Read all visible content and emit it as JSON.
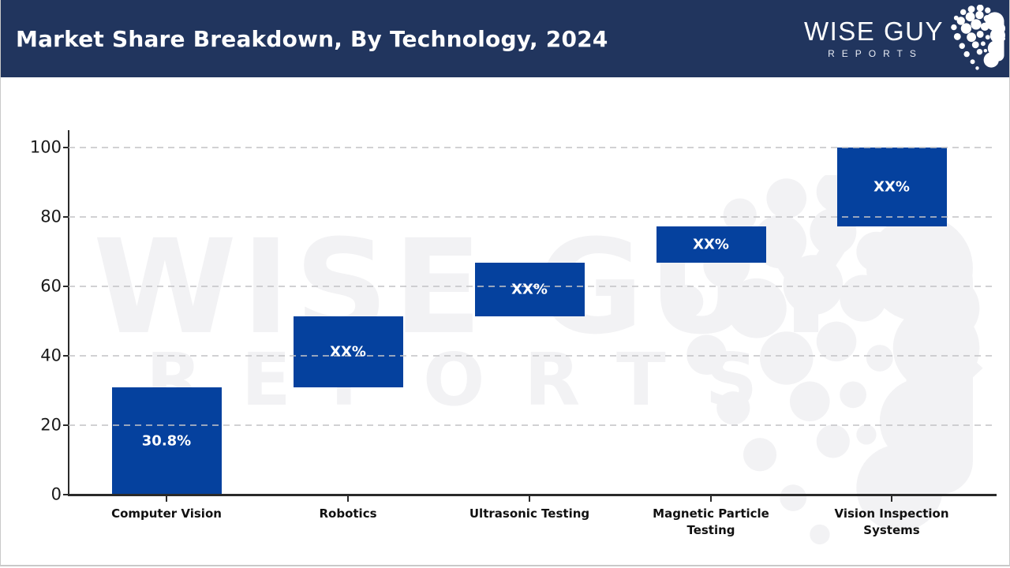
{
  "header": {
    "title": "Market Share Breakdown, By Technology, 2024",
    "logo": {
      "name": "WISE GUY",
      "sub": "REPORTS"
    }
  },
  "watermark": {
    "name": "WISE GUY",
    "sub": "REPORTS"
  },
  "chart_data": {
    "type": "bar",
    "subtype": "floating-waterfall-segments",
    "title": "Market Share Breakdown, By Technology, 2024",
    "categories": [
      "Computer Vision",
      "Robotics",
      "Ultrasonic Testing",
      "Magnetic Particle Testing",
      "Vision Inspection Systems"
    ],
    "segments": [
      {
        "category": "Computer Vision",
        "start": 0,
        "end": 30.8,
        "label": "30.8%"
      },
      {
        "category": "Robotics",
        "start": 30.8,
        "end": 51.3,
        "label": "XX%"
      },
      {
        "category": "Ultrasonic Testing",
        "start": 51.3,
        "end": 66.8,
        "label": "XX%"
      },
      {
        "category": "Magnetic Particle Testing",
        "start": 66.8,
        "end": 77.3,
        "label": "XX%"
      },
      {
        "category": "Vision Inspection Systems",
        "start": 77.3,
        "end": 100.0,
        "label": "XX%"
      }
    ],
    "yticks": [
      0,
      20,
      40,
      60,
      80,
      100
    ],
    "ylim": [
      0,
      105
    ],
    "xlabel": "",
    "ylabel": "",
    "grid": "horizontal-dashed",
    "legend": "none"
  },
  "colors": {
    "header_bg": "#21355E",
    "bar": "#05419E",
    "bar_label": "#ffffff",
    "grid": "#d4d4d4",
    "axis": "#2a2a2a",
    "tick_text": "#1a1a1a",
    "watermark": "#f2f2f4",
    "frame_border": "#c9c9c9"
  }
}
